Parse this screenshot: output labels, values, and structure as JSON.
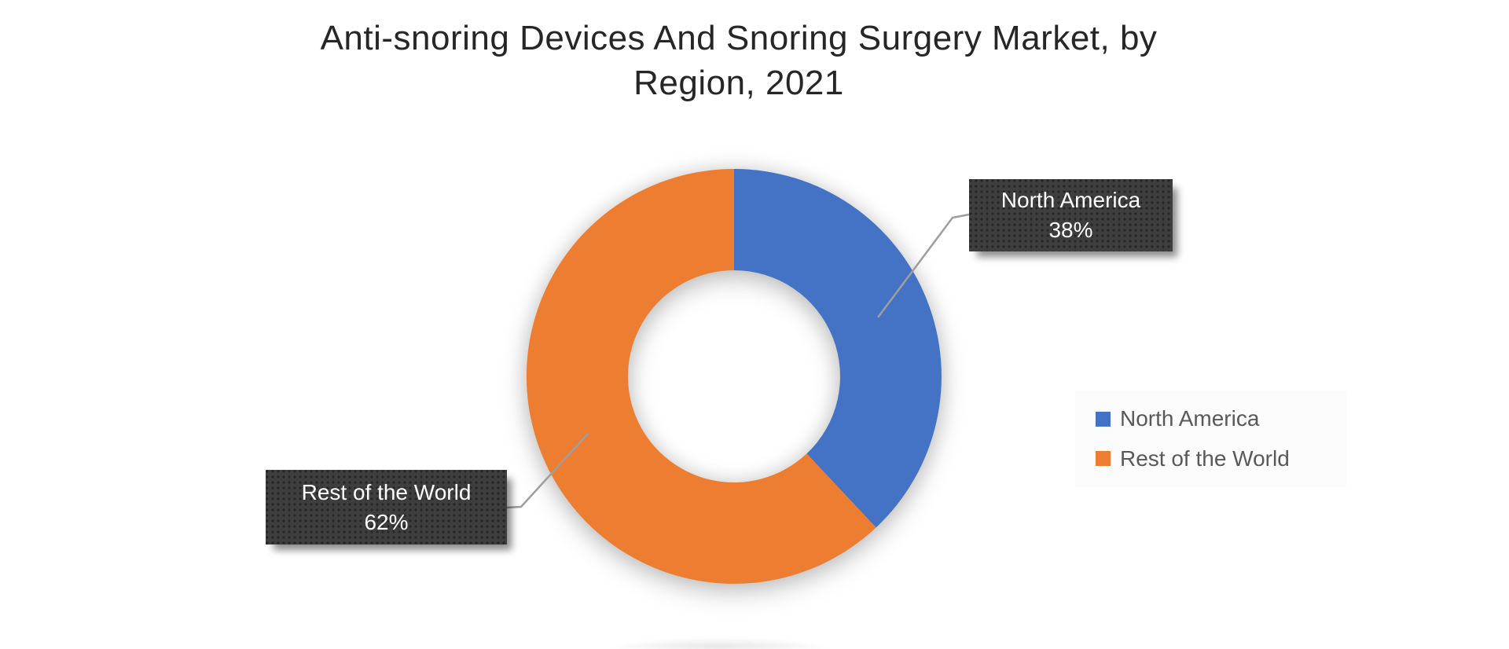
{
  "title": {
    "line1": "Anti-snoring Devices And Snoring Surgery Market, by",
    "line2": "Region, 2021"
  },
  "chart_data": {
    "type": "pie",
    "subtype": "donut",
    "title": "Anti-snoring Devices And Snoring Surgery Market, by Region, 2021",
    "categories": [
      "North America",
      "Rest of the World"
    ],
    "values": [
      38,
      62
    ],
    "unit": "percent",
    "colors": [
      "#4472C4",
      "#ED7D31"
    ],
    "start_angle_deg": 0,
    "direction": "clockwise",
    "legend_position": "right",
    "data_labels": [
      "North America 38%",
      "Rest of the World 62%"
    ]
  },
  "callouts": [
    {
      "label": "North America",
      "value": "38%"
    },
    {
      "label": "Rest of the World",
      "value": "62%"
    }
  ],
  "legend": {
    "items": [
      {
        "label": "North America"
      },
      {
        "label": "Rest of the World"
      }
    ]
  },
  "colors": {
    "label_box_bg": "#3E3E3E",
    "label_text": "#FFFFFF",
    "leader_line": "#9E9E9E",
    "legend_text": "#595959",
    "title_text": "#262626"
  }
}
